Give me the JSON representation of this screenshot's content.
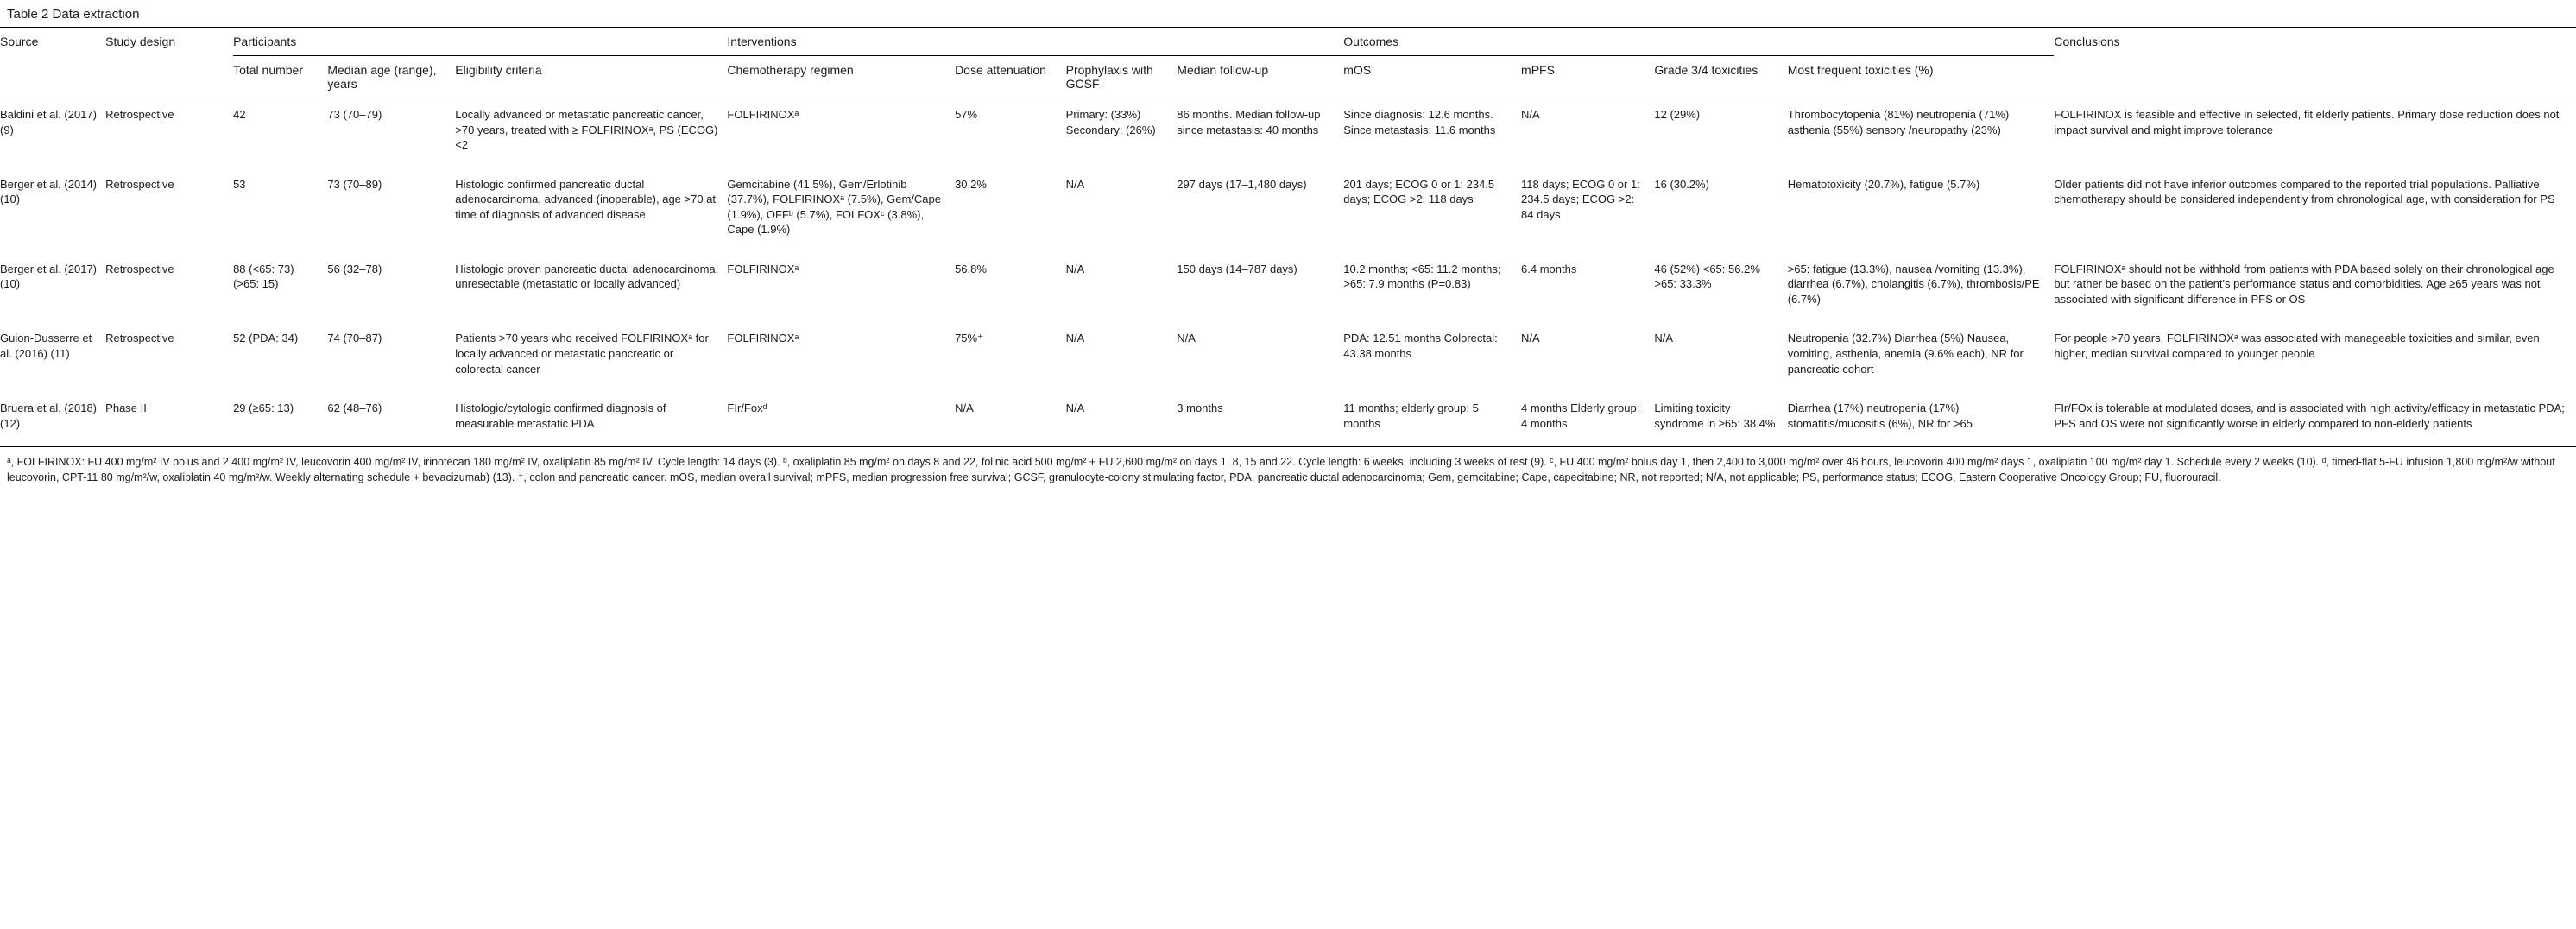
{
  "table": {
    "caption": "Table 2 Data extraction",
    "group_headers": {
      "source": "Source",
      "design": "Study design",
      "participants": "Participants",
      "interventions": "Interventions",
      "outcomes": "Outcomes",
      "conclusions": "Conclusions"
    },
    "sub_headers": {
      "total": "Total number",
      "age": "Median age (range), years",
      "elig": "Eligibility criteria",
      "chemo": "Chemotherapy regimen",
      "dose": "Dose attenuation",
      "proph": "Prophylaxis with GCSF",
      "followup": "Median follow-up",
      "mos": "mOS",
      "mpfs": "mPFS",
      "grade": "Grade 3/4 toxicities",
      "tox": "Most frequent toxicities (%)"
    },
    "rows": [
      {
        "source": "Baldini et al. (2017) (9)",
        "design": "Retrospective",
        "total": "42",
        "age": "73 (70–79)",
        "elig": "Locally advanced or metastatic pancreatic cancer, >70 years, treated with ≥ FOLFIRINOXᵃ, PS (ECOG) <2",
        "chemo": "FOLFIRINOXᵃ",
        "dose": "57%",
        "proph": "Primary: (33%) Secondary: (26%)",
        "followup": "86 months. Median follow-up since metastasis: 40 months",
        "mos": "Since diagnosis: 12.6 months. Since metastasis: 11.6 months",
        "mpfs": "N/A",
        "grade": "12 (29%)",
        "tox": "Thrombocytopenia (81%) neutropenia (71%) asthenia (55%) sensory /neuropathy (23%)",
        "concl": "FOLFIRINOX is feasible and effective in selected, fit elderly patients. Primary dose reduction does not impact survival and might improve tolerance"
      },
      {
        "source": "Berger et al. (2014) (10)",
        "design": "Retrospective",
        "total": "53",
        "age": "73 (70–89)",
        "elig": "Histologic confirmed pancreatic ductal adenocarcinoma, advanced (inoperable), age >70 at time of diagnosis of advanced disease",
        "chemo": "Gemcitabine (41.5%), Gem/Erlotinib (37.7%), FOLFIRINOXᵃ (7.5%), Gem/Cape (1.9%), OFFᵇ (5.7%), FOLFOXᶜ (3.8%), Cape (1.9%)",
        "dose": "30.2%",
        "proph": "N/A",
        "followup": "297 days (17–1,480 days)",
        "mos": "201 days; ECOG 0 or 1: 234.5 days; ECOG >2: 118 days",
        "mpfs": "118 days; ECOG 0 or 1: 234.5 days; ECOG >2: 84 days",
        "grade": "16 (30.2%)",
        "tox": "Hematotoxicity (20.7%), fatigue (5.7%)",
        "concl": "Older patients did not have inferior outcomes compared to the reported trial populations. Palliative chemotherapy should be considered independently from chronological age, with consideration for PS"
      },
      {
        "source": "Berger et al. (2017) (10)",
        "design": "Retrospective",
        "total": "88 (<65: 73) (>65: 15)",
        "age": "56 (32–78)",
        "elig": "Histologic proven pancreatic ductal adenocarcinoma, unresectable (metastatic or locally advanced)",
        "chemo": "FOLFIRINOXᵃ",
        "dose": "56.8%",
        "proph": "N/A",
        "followup": "150 days (14–787 days)",
        "mos": "10.2 months; <65: 11.2 months; >65: 7.9 months (P=0.83)",
        "mpfs": "6.4 months",
        "grade": "46 (52%) <65: 56.2% >65: 33.3%",
        "tox": ">65: fatigue (13.3%), nausea /vomiting (13.3%), diarrhea (6.7%), cholangitis (6.7%), thrombosis/PE (6.7%)",
        "concl": "FOLFIRINOXᵃ should not be withhold from patients with PDA based solely on their chronological age but rather be based on the patient's performance status and comorbidities. Age ≥65 years was not associated with significant difference in PFS or OS"
      },
      {
        "source": "Guion-Dusserre et al. (2016) (11)",
        "design": "Retrospective",
        "total": "52 (PDA: 34)",
        "age": "74 (70–87)",
        "elig": "Patients >70 years who received FOLFIRINOXᵃ for locally advanced or metastatic pancreatic or colorectal cancer",
        "chemo": "FOLFIRINOXᵃ",
        "dose": "75%⁺",
        "proph": "N/A",
        "followup": "N/A",
        "mos": "PDA: 12.51 months Colorectal: 43.38 months",
        "mpfs": "N/A",
        "grade": "N/A",
        "tox": "Neutropenia (32.7%) Diarrhea (5%) Nausea, vomiting, asthenia, anemia (9.6% each), NR for pancreatic cohort",
        "concl": "For people >70 years, FOLFIRINOXᵃ was associated with manageable toxicities and similar, even higher, median survival compared to younger people"
      },
      {
        "source": "Bruera et al. (2018) (12)",
        "design": "Phase II",
        "total": "29 (≥65: 13)",
        "age": "62 (48–76)",
        "elig": "Histologic/cytologic confirmed diagnosis of measurable metastatic PDA",
        "chemo": "FIr/Foxᵈ",
        "dose": "N/A",
        "proph": "N/A",
        "followup": "3 months",
        "mos": "11 months; elderly group: 5 months",
        "mpfs": "4 months Elderly group: 4 months",
        "grade": "Limiting toxicity syndrome in ≥65: 38.4%",
        "tox": "Diarrhea (17%) neutropenia (17%) stomatitis/mucositis (6%), NR for >65",
        "concl": "FIr/FOx is tolerable at modulated doses, and is associated with high activity/efficacy in metastatic PDA; PFS and OS were not significantly worse in elderly compared to non-elderly patients"
      }
    ],
    "footnotes": "ᵃ, FOLFIRINOX: FU 400 mg/m² IV bolus and 2,400 mg/m² IV, leucovorin 400 mg/m² IV, irinotecan 180 mg/m² IV, oxaliplatin 85 mg/m² IV. Cycle length: 14 days (3). ᵇ, oxaliplatin 85 mg/m² on days 8 and 22, folinic acid 500 mg/m² + FU 2,600 mg/m² on days 1, 8, 15 and 22. Cycle length: 6 weeks, including 3 weeks of rest (9). ᶜ, FU 400 mg/m² bolus day 1, then 2,400 to 3,000 mg/m² over 46 hours, leucovorin 400 mg/m² days 1, oxaliplatin 100 mg/m² day 1. Schedule every 2 weeks (10). ᵈ, timed-flat 5-FU infusion 1,800 mg/m²/w without leucovorin, CPT-11 80 mg/m²/w, oxaliplatin 40 mg/m²/w. Weekly alternating schedule + bevacizumab) (13). ⁺, colon and pancreatic cancer. mOS, median overall survival; mPFS, median progression free survival; GCSF, granulocyte-colony stimulating factor, PDA, pancreatic ductal adenocarcinoma; Gem, gemcitabine; Cape, capecitabine; NR, not reported; N/A, not applicable; PS, performance status; ECOG, Eastern Cooperative Oncology Group; FU, fluorouracil."
  }
}
